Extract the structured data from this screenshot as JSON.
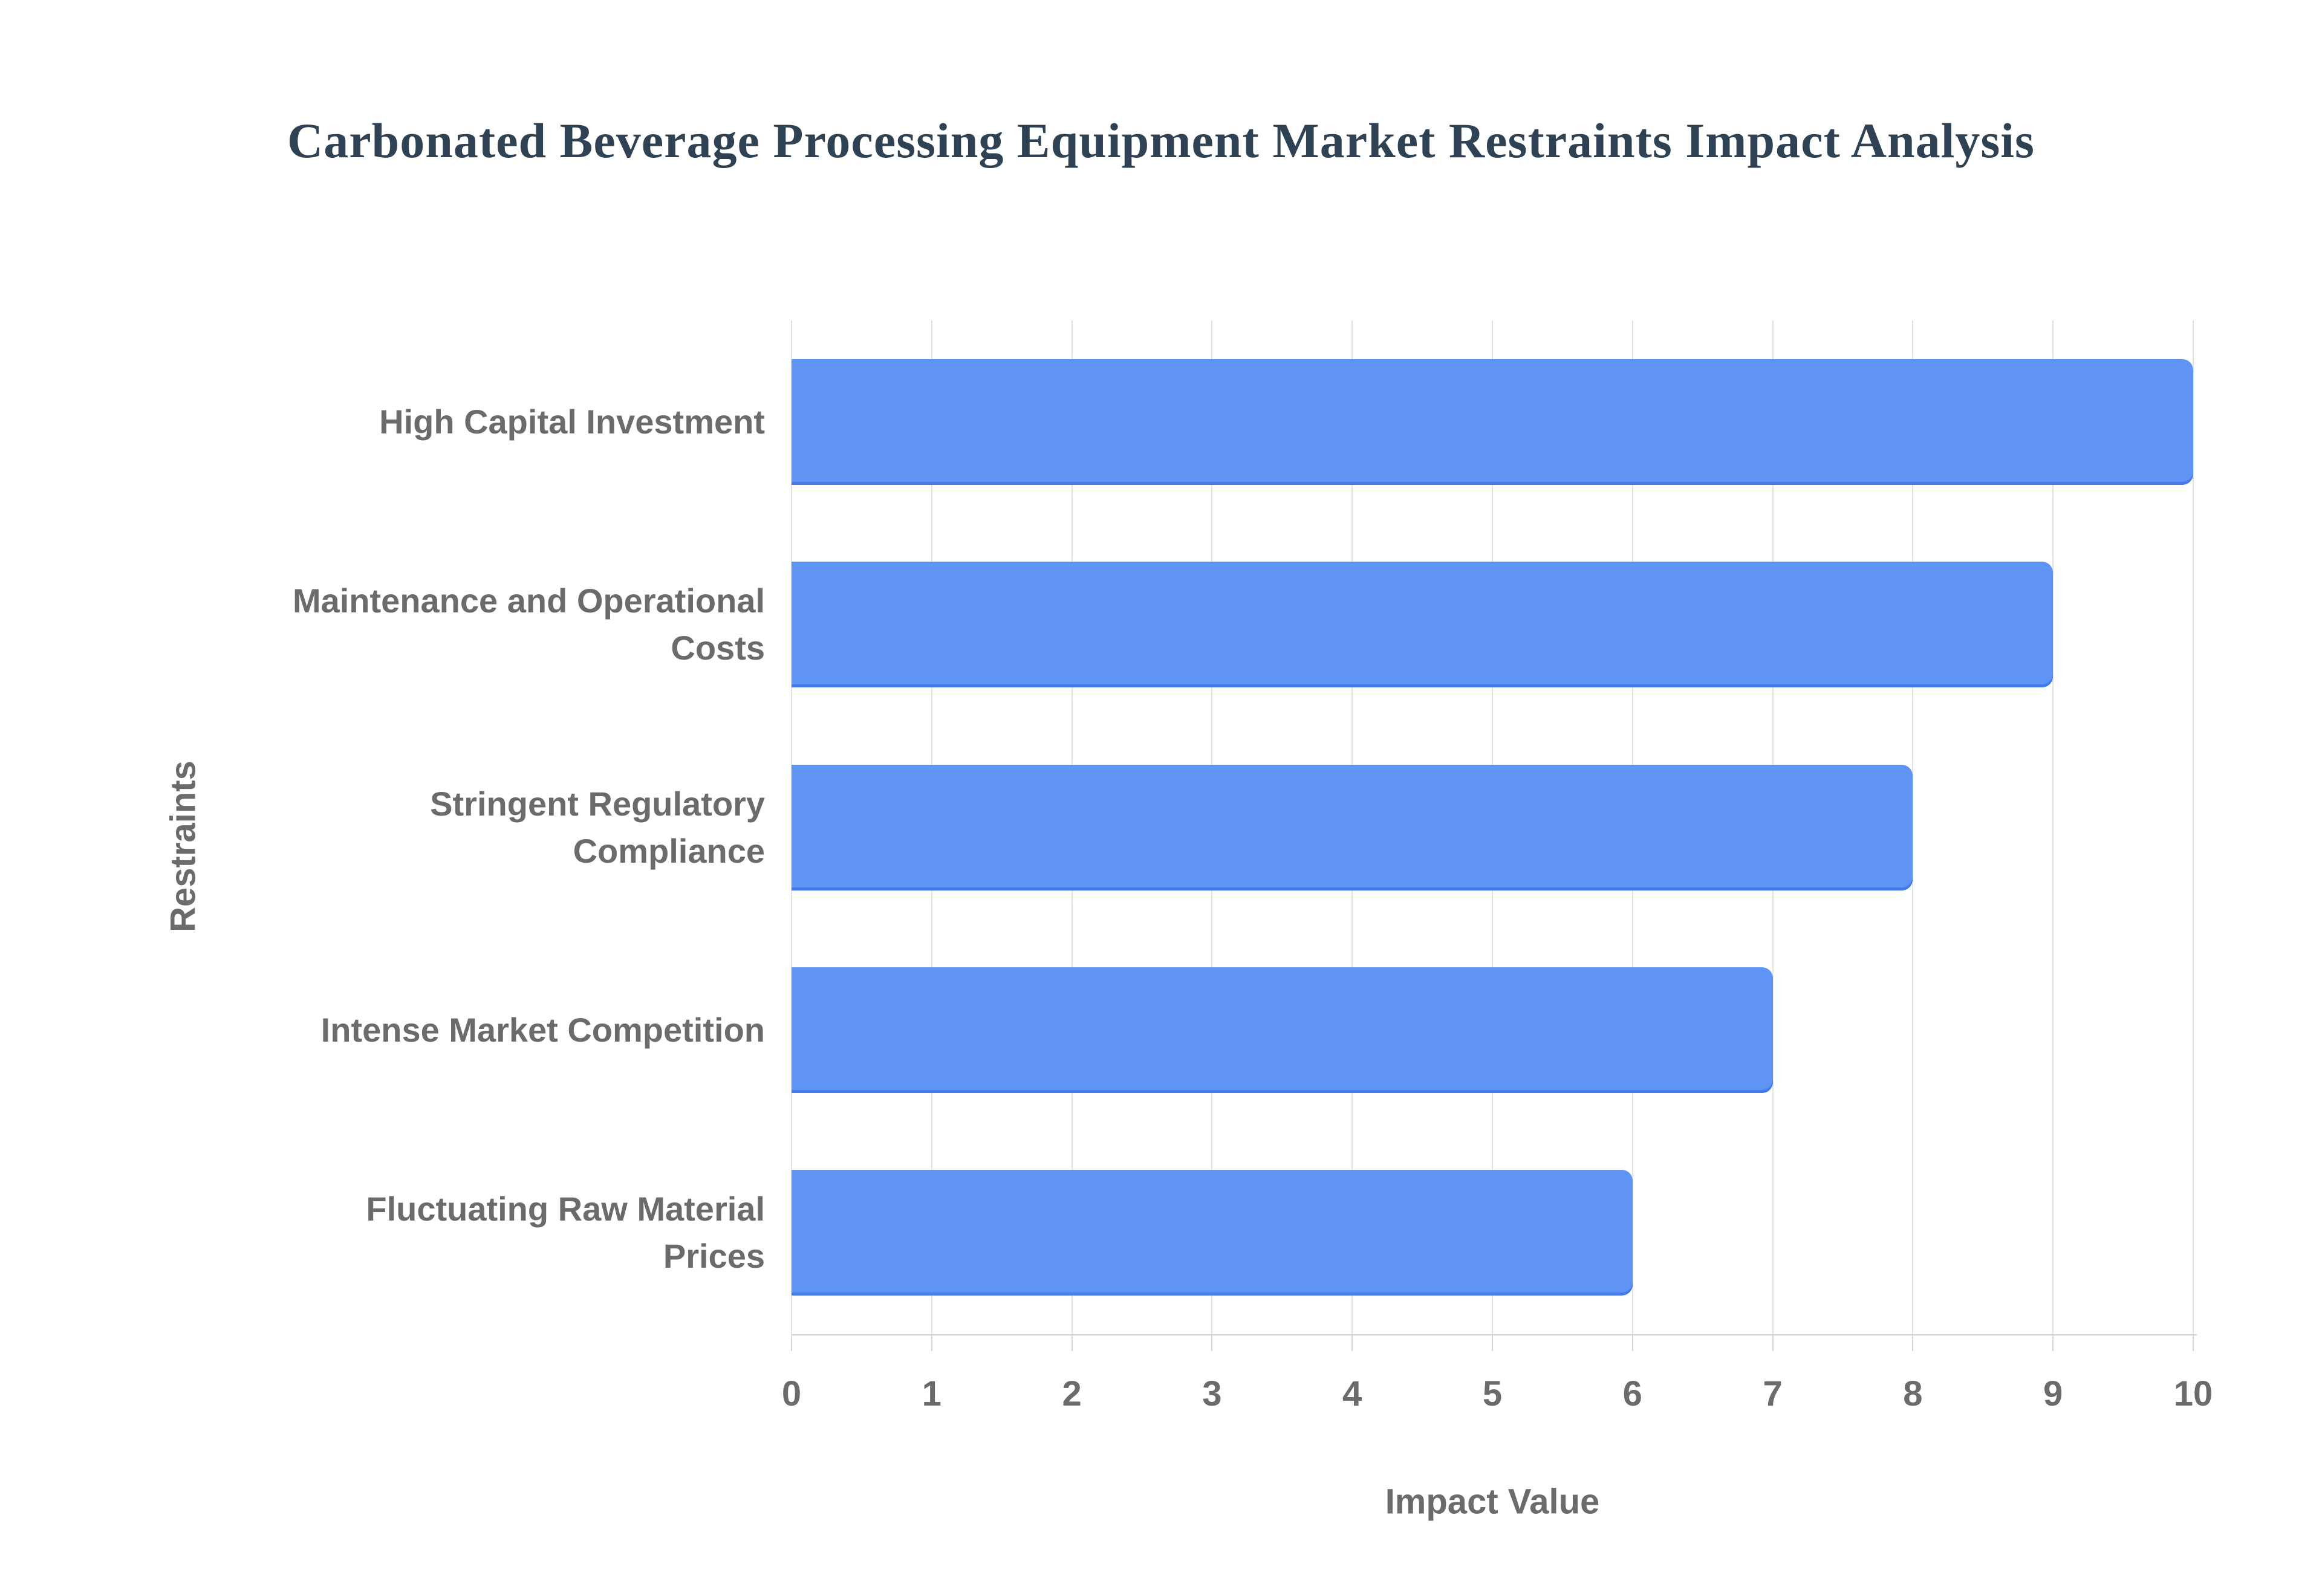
{
  "chart_data": {
    "type": "bar",
    "orientation": "horizontal",
    "title": "Carbonated Beverage Processing Equipment Market Restraints Impact Analysis",
    "xlabel": "Impact Value",
    "ylabel": "Restraints",
    "categories": [
      "High Capital Investment",
      "Maintenance and Operational Costs",
      "Stringent Regulatory Compliance",
      "Intense Market Competition",
      "Fluctuating Raw Material Prices"
    ],
    "values": [
      10,
      9,
      8,
      7,
      6
    ],
    "xlim": [
      0,
      10
    ],
    "xticks": [
      0,
      1,
      2,
      3,
      4,
      5,
      6,
      7,
      8,
      9,
      10
    ],
    "grid": true,
    "legend": "none",
    "colors": {
      "bar_fill": "#5f94f5",
      "bar_edge": "#4479e9",
      "gridline": "#e2e2e2",
      "axis_line": "#cfcfcf",
      "label_text": "#6b6b6b",
      "title_text": "#2e4254",
      "background": "#ffffff"
    }
  }
}
